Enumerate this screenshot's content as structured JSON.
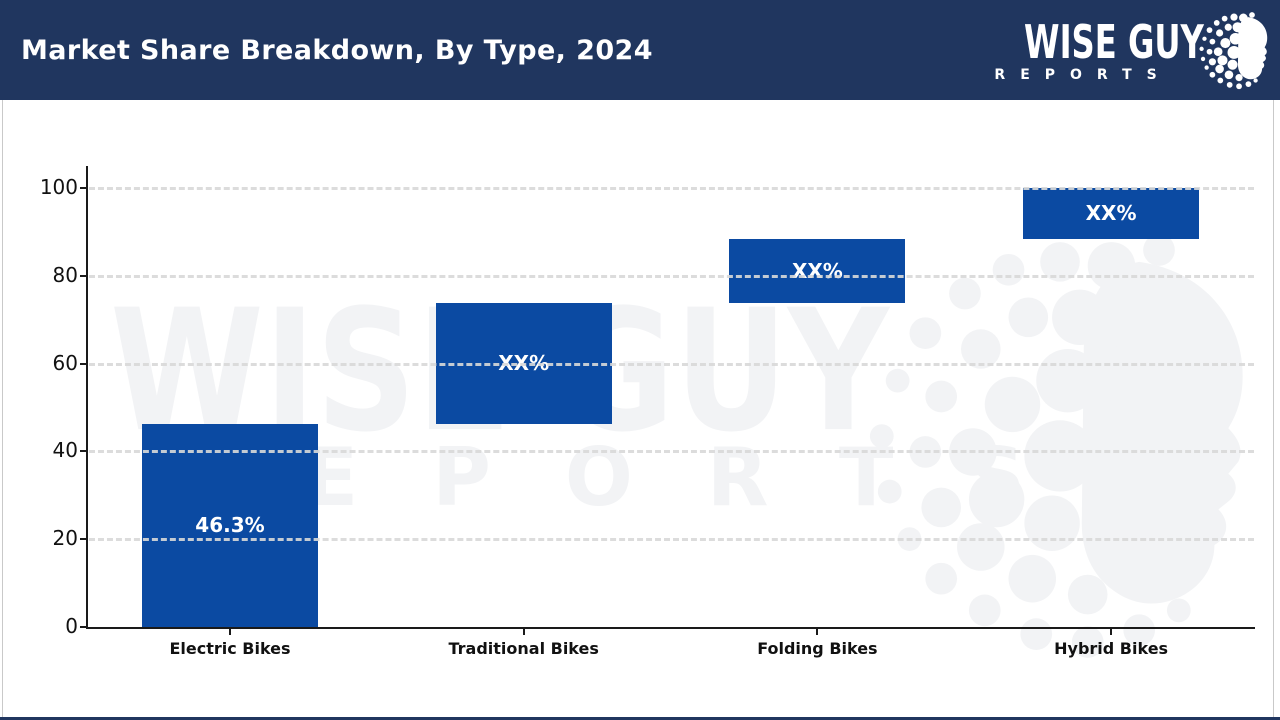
{
  "header": {
    "title": "Market Share Breakdown, By Type, 2024",
    "logo": {
      "brand": "WISE GUY",
      "sub": "REPORTS"
    }
  },
  "watermark": {
    "brand": "WISE GUY",
    "sub": "REPORTS"
  },
  "chart_data": {
    "type": "bar",
    "variant": "waterfall",
    "title": "Market Share Breakdown, By Type, 2024",
    "categories": [
      "Electric Bikes",
      "Traditional Bikes",
      "Folding Bikes",
      "Hybrid Bikes"
    ],
    "unit": "%",
    "segments": [
      {
        "category": "Electric Bikes",
        "start": 0,
        "end": 46.3,
        "label": "46.3%"
      },
      {
        "category": "Traditional Bikes",
        "start": 46.3,
        "end": 73.8,
        "label": "XX%"
      },
      {
        "category": "Folding Bikes",
        "start": 73.8,
        "end": 88.4,
        "label": "XX%"
      },
      {
        "category": "Hybrid Bikes",
        "start": 88.4,
        "end": 100,
        "label": "XX%"
      }
    ],
    "xlabel": "",
    "ylabel": "",
    "yticks": [
      0,
      20,
      40,
      60,
      80,
      100
    ],
    "ylim": [
      0,
      105
    ],
    "grid": "horizontal-dashed",
    "legend": "none",
    "bar_color": "#0b4aa2",
    "bar_label_color": "#ffffff"
  },
  "colors": {
    "header_bg": "#20365f",
    "bar": "#0b4aa2",
    "grid": "#d9d9d9",
    "axis": "#1a1a1a",
    "panel_border": "#c9c9c9",
    "watermark": "#f2f3f5"
  }
}
